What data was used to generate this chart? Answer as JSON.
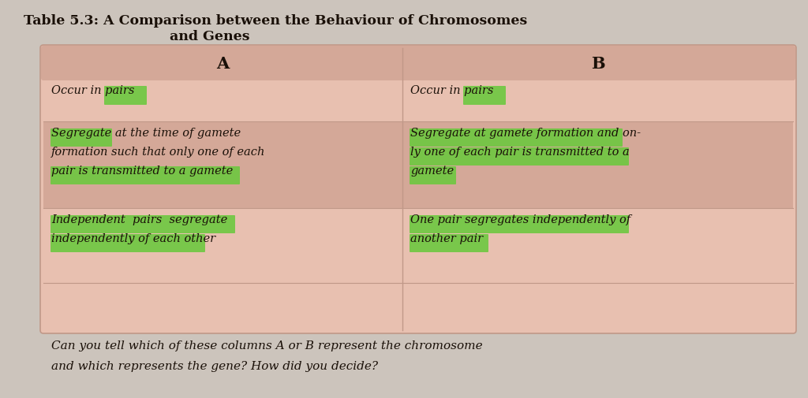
{
  "title_line1": "Table 5.3: A Comparison between the Behaviour of Chromosomes",
  "title_line2": "and Genes",
  "col_a_header": "A",
  "col_b_header": "B",
  "row0_a": "Occur in pairs",
  "row0_b": "Occur in pairs",
  "row1_a_lines": [
    "Segregate at the time of gamete",
    "formation such that only one of each",
    "pair is transmitted to a gamete"
  ],
  "row1_b_lines": [
    "Segregate at gamete formation and on-",
    "ly one of each pair is transmitted to a",
    "gamete"
  ],
  "row2_a_lines": [
    "Independent  pairs  segregate",
    "independently of each other"
  ],
  "row2_b_lines": [
    "One pair segregates independently of",
    "another pair"
  ],
  "footer_line1": "Can you tell which of these columns A or B represent the chromosome",
  "footer_line2": "and which represents the gene? How did you decide?",
  "page_bg": "#ccc4bc",
  "table_light": "#e8c0b0",
  "table_dark": "#d4a898",
  "highlight_green": "#6dc840",
  "text_dark": "#1a1008",
  "divider_color": "#c09888"
}
